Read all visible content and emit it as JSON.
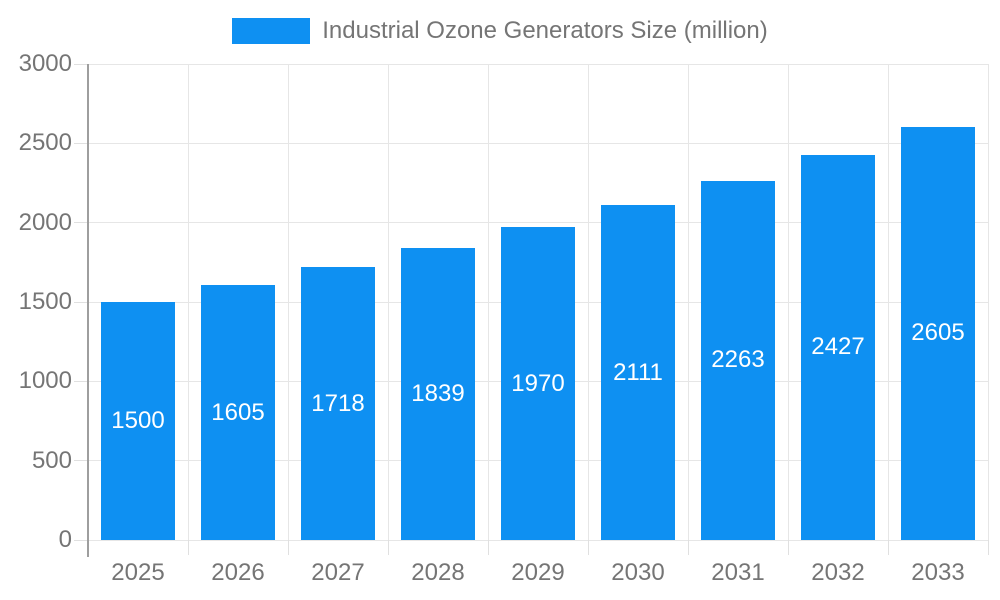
{
  "legend": {
    "label": "Industrial Ozone Generators Size (million)"
  },
  "chart_data": {
    "type": "bar",
    "title": "Industrial Ozone Generators Size (million)",
    "categories": [
      "2025",
      "2026",
      "2027",
      "2028",
      "2029",
      "2030",
      "2031",
      "2032",
      "2033"
    ],
    "values": [
      1500,
      1605,
      1718,
      1839,
      1970,
      2111,
      2263,
      2427,
      2605
    ],
    "xlabel": "",
    "ylabel": "",
    "ylim": [
      0,
      3000
    ],
    "yticks": [
      0,
      500,
      1000,
      1500,
      2000,
      2500,
      3000
    ],
    "grid": true,
    "legend_position": "top",
    "value_labels": "centered-inside-white",
    "colors": {
      "bar": "#0e90f2",
      "value_label": "#ffffff",
      "axis_text": "#757575",
      "gridline": "#e6e6e6",
      "axis_line": "#9e9e9e",
      "background": "#ffffff"
    }
  }
}
